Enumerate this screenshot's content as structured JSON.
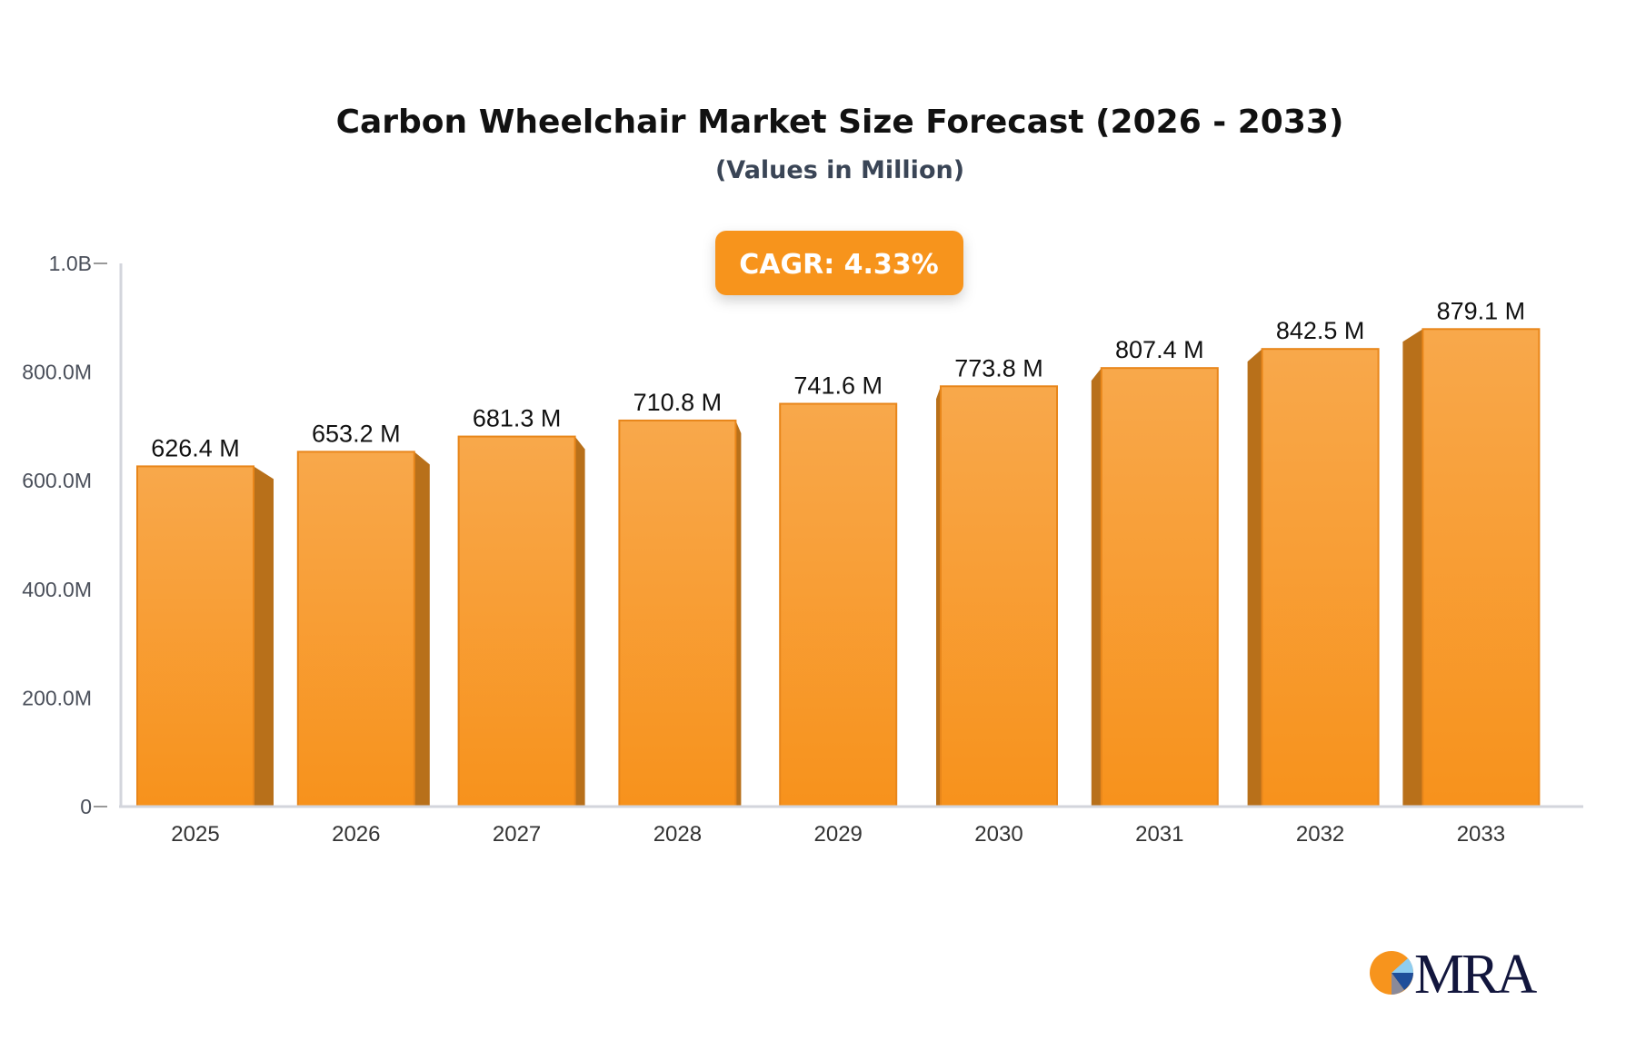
{
  "chart_data": {
    "type": "bar",
    "title": "Carbon Wheelchair Market Size Forecast (2026 - 2033)",
    "subtitle": "(Values in Million)",
    "badge": "CAGR: 4.33%",
    "categories": [
      "2025",
      "2026",
      "2027",
      "2028",
      "2029",
      "2030",
      "2031",
      "2032",
      "2033"
    ],
    "values": [
      626.4,
      653.2,
      681.3,
      710.8,
      741.6,
      773.8,
      807.4,
      842.5,
      879.1
    ],
    "data_labels": [
      "626.4 M",
      "653.2 M",
      "681.3 M",
      "710.8 M",
      "741.6 M",
      "773.8 M",
      "807.4 M",
      "842.5 M",
      "879.1 M"
    ],
    "yticks": [
      0,
      200,
      400,
      600,
      800,
      1000
    ],
    "ytick_labels": [
      "0",
      "200.0M",
      "400.0M",
      "600.0M",
      "800.0M",
      "1.0B"
    ],
    "ylim": [
      0,
      1000
    ],
    "grid": false,
    "colors": {
      "bar_front": "#f7941d",
      "bar_top": "#f8a94b",
      "bar_side": "#b8701a",
      "badge": "#f7941d"
    }
  },
  "logo": {
    "text": "MRA"
  }
}
